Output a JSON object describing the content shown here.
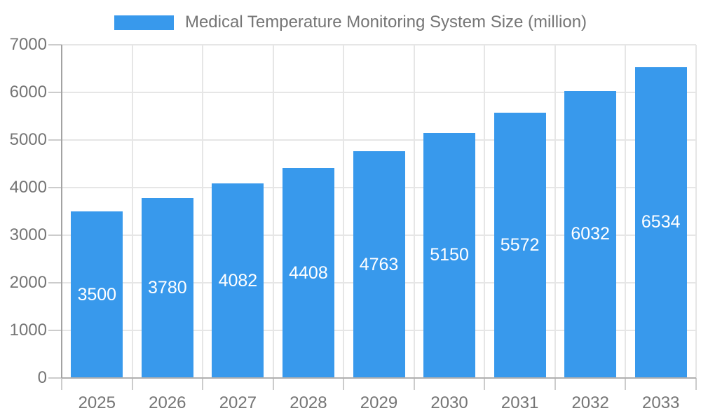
{
  "chart_data": {
    "type": "bar",
    "title": "Medical Temperature Monitoring System Size (million)",
    "legend_position": "top",
    "categories": [
      "2025",
      "2026",
      "2027",
      "2028",
      "2029",
      "2030",
      "2031",
      "2032",
      "2033"
    ],
    "series": [
      {
        "name": "Medical Temperature Monitoring System Size (million)",
        "values": [
          3500,
          3780,
          4082,
          4408,
          4763,
          5150,
          5572,
          6032,
          6534
        ]
      }
    ],
    "value_labels_shown": true,
    "xlabel": "",
    "ylabel": "",
    "ylim": [
      0,
      7000
    ],
    "y_ticks": [
      0,
      1000,
      2000,
      3000,
      4000,
      5000,
      6000,
      7000
    ],
    "grid": true,
    "colors": {
      "bar": "#3899EC",
      "value_label": "#ffffff",
      "grid_line": "#e6e6e6",
      "axis_line_y": "#a3a3a3",
      "axis_line_x": "#b0b0b0",
      "tick_mark": "#cccccc",
      "tick_label": "#757575",
      "legend_text": "#757575",
      "background": "#ffffff"
    }
  }
}
